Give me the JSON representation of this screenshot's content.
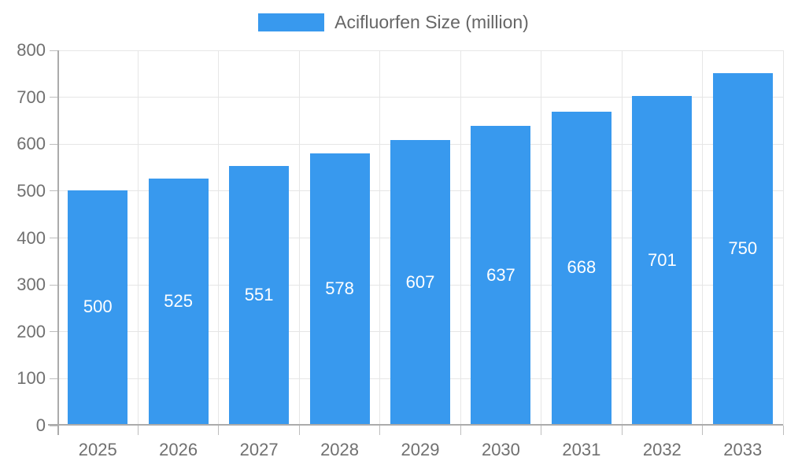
{
  "chart_data": {
    "type": "bar",
    "title": "Acifluorfen Size (million)",
    "categories": [
      "2025",
      "2026",
      "2027",
      "2028",
      "2029",
      "2030",
      "2031",
      "2032",
      "2033"
    ],
    "values": [
      500,
      525,
      551,
      578,
      607,
      637,
      668,
      701,
      750
    ],
    "xlabel": "",
    "ylabel": "",
    "ylim": [
      0,
      800
    ],
    "ytick_step": 100,
    "ytick_labels": [
      "0",
      "100",
      "200",
      "300",
      "400",
      "500",
      "600",
      "700",
      "800"
    ],
    "grid": true,
    "legend_position": "top-center",
    "bar_color": "#3899ee",
    "bar_label_color": "#ffffff",
    "axis_text_color": "#707070",
    "grid_color": "#e6e6e6",
    "axis_line_color": "#ababab",
    "background_color": "#ffffff"
  },
  "legend": {
    "label": "Acifluorfen Size (million)",
    "swatch_color": "#3899ee"
  }
}
